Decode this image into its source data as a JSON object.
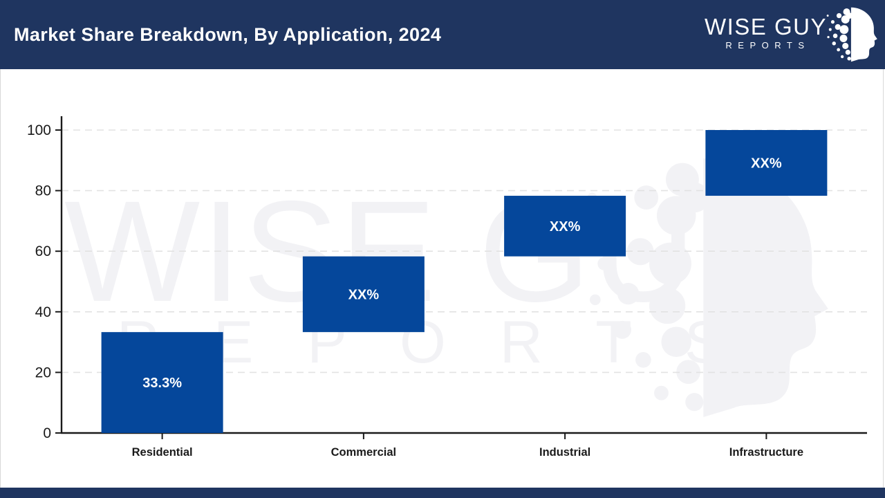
{
  "header": {
    "title": "Market Share Breakdown, By Application, 2024",
    "logo": {
      "wordmark": "WISE GUY",
      "sub": "REPORTS"
    }
  },
  "watermark": {
    "line1": "WISE GUY",
    "line2": "R E P O R T S"
  },
  "colors": {
    "header_bg": "#1f3560",
    "footer_bg": "#1f3560",
    "bar": "#05479b",
    "bar_label": "#ffffff",
    "grid": "#e2e2e2",
    "axis": "#1a1a1a",
    "watermark": "#f2f2f5"
  },
  "chart_data": {
    "type": "bar",
    "subtype": "waterfall",
    "title": "Market Share Breakdown, By Application, 2024",
    "categories": [
      "Residential",
      "Commercial",
      "Industrial",
      "Infrastructure"
    ],
    "segments": [
      {
        "category": "Residential",
        "start": 0,
        "end": 33.3,
        "label": "33.3%"
      },
      {
        "category": "Commercial",
        "start": 33.3,
        "end": 58.3,
        "label": "XX%"
      },
      {
        "category": "Industrial",
        "start": 58.3,
        "end": 78.3,
        "label": "XX%"
      },
      {
        "category": "Infrastructure",
        "start": 78.3,
        "end": 100,
        "label": "XX%"
      }
    ],
    "yticks": [
      0,
      20,
      40,
      60,
      80,
      100
    ],
    "ylim": [
      0,
      105
    ],
    "xlabel": "",
    "ylabel": "",
    "grid": "horizontal-dashed",
    "legend": "none"
  }
}
